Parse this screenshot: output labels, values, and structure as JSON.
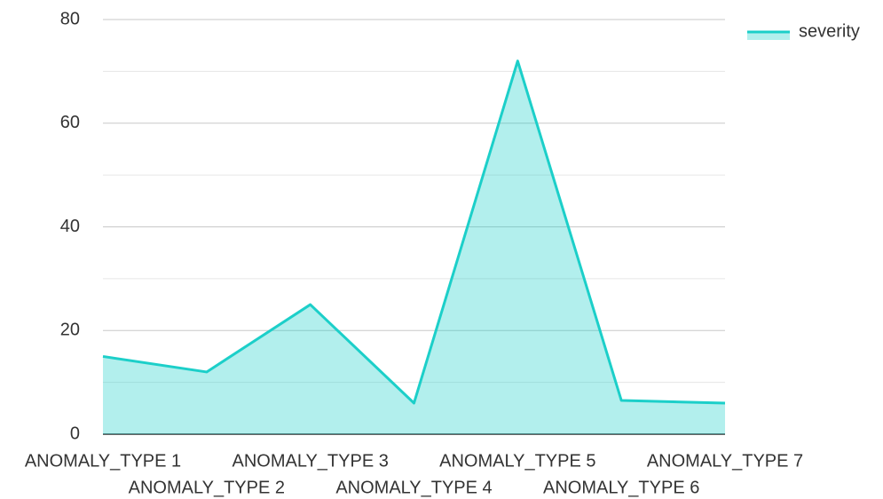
{
  "chart_data": {
    "type": "area",
    "categories": [
      "ANOMALY_TYPE 1",
      "ANOMALY_TYPE 2",
      "ANOMALY_TYPE 3",
      "ANOMALY_TYPE 4",
      "ANOMALY_TYPE 5",
      "ANOMALY_TYPE 6",
      "ANOMALY_TYPE 7"
    ],
    "series": [
      {
        "name": "severity",
        "color": "#1ccfc9",
        "values": [
          15,
          12,
          25,
          6,
          72,
          6.5,
          6
        ]
      }
    ],
    "ylim": [
      0,
      80
    ],
    "yticks": [
      0,
      20,
      40,
      60,
      80
    ],
    "minor_yticks": [
      10,
      30,
      50,
      70
    ],
    "grid": true,
    "legend": "top-right"
  }
}
